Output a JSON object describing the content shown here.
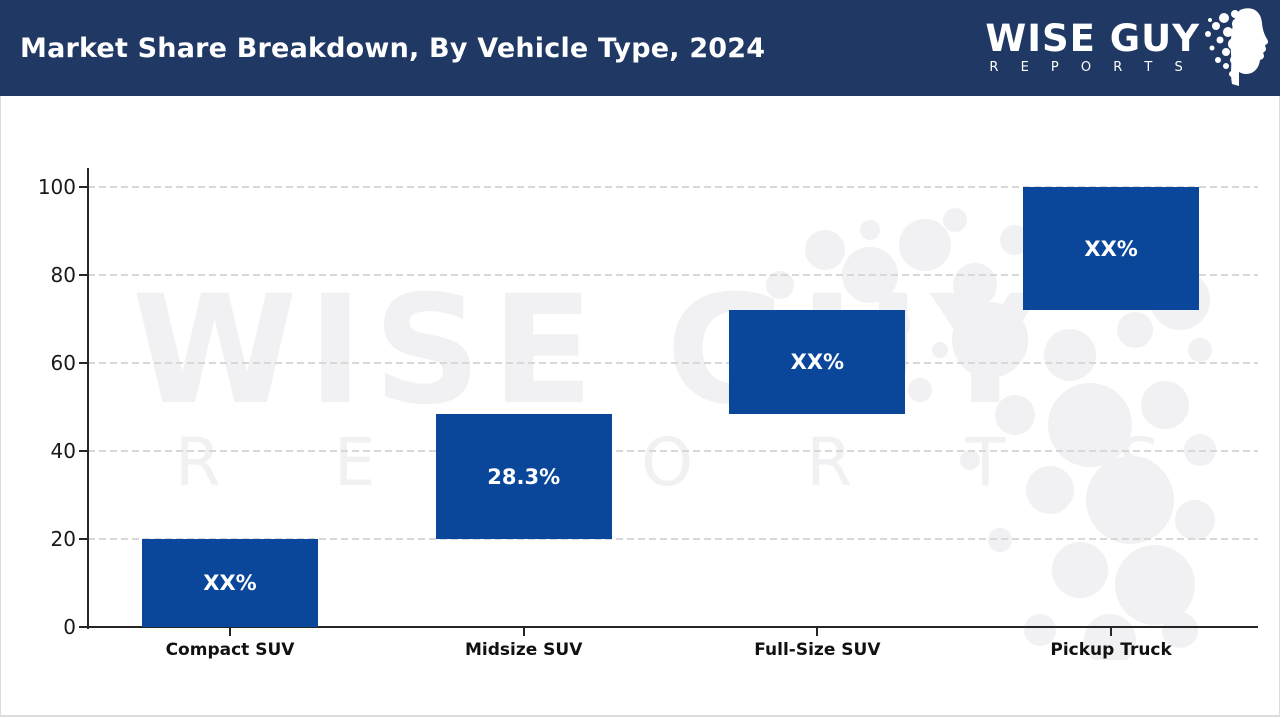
{
  "header": {
    "title": "Market Share Breakdown, By Vehicle Type, 2024",
    "logo": {
      "wordmark": "WISE GUY",
      "subtext": "R E P O R T S"
    }
  },
  "watermark": {
    "wordmark": "WISE GUY",
    "subtext": "R E P O R T S"
  },
  "chart_data": {
    "type": "bar",
    "subtype": "floating-segment-waterfall",
    "title": "Market Share Breakdown, By Vehicle Type, 2024",
    "categories": [
      "Compact SUV",
      "Midsize SUV",
      "Full-Size SUV",
      "Pickup Truck"
    ],
    "segments": [
      {
        "category": "Compact SUV",
        "start": 0,
        "end": 20,
        "label": "XX%"
      },
      {
        "category": "Midsize SUV",
        "start": 20,
        "end": 48.3,
        "label": "28.3%"
      },
      {
        "category": "Full-Size SUV",
        "start": 48.3,
        "end": 72,
        "label": "XX%"
      },
      {
        "category": "Pickup Truck",
        "start": 72,
        "end": 100,
        "label": "XX%"
      }
    ],
    "yticks": [
      0,
      20,
      40,
      60,
      80,
      100
    ],
    "ylim": [
      0,
      104
    ],
    "xlabel": "",
    "ylabel": "",
    "grid": "horizontal-dashed",
    "legend_position": "none",
    "bar_color": "#0a479b",
    "bar_label_color": "#ffffff"
  },
  "colors": {
    "header_bg": "#1f3864",
    "header_text": "#ffffff",
    "axis": "#262626",
    "gridline": "#d8d8d8",
    "watermark": "#f1f1f3",
    "canvas": "#ffffff"
  }
}
